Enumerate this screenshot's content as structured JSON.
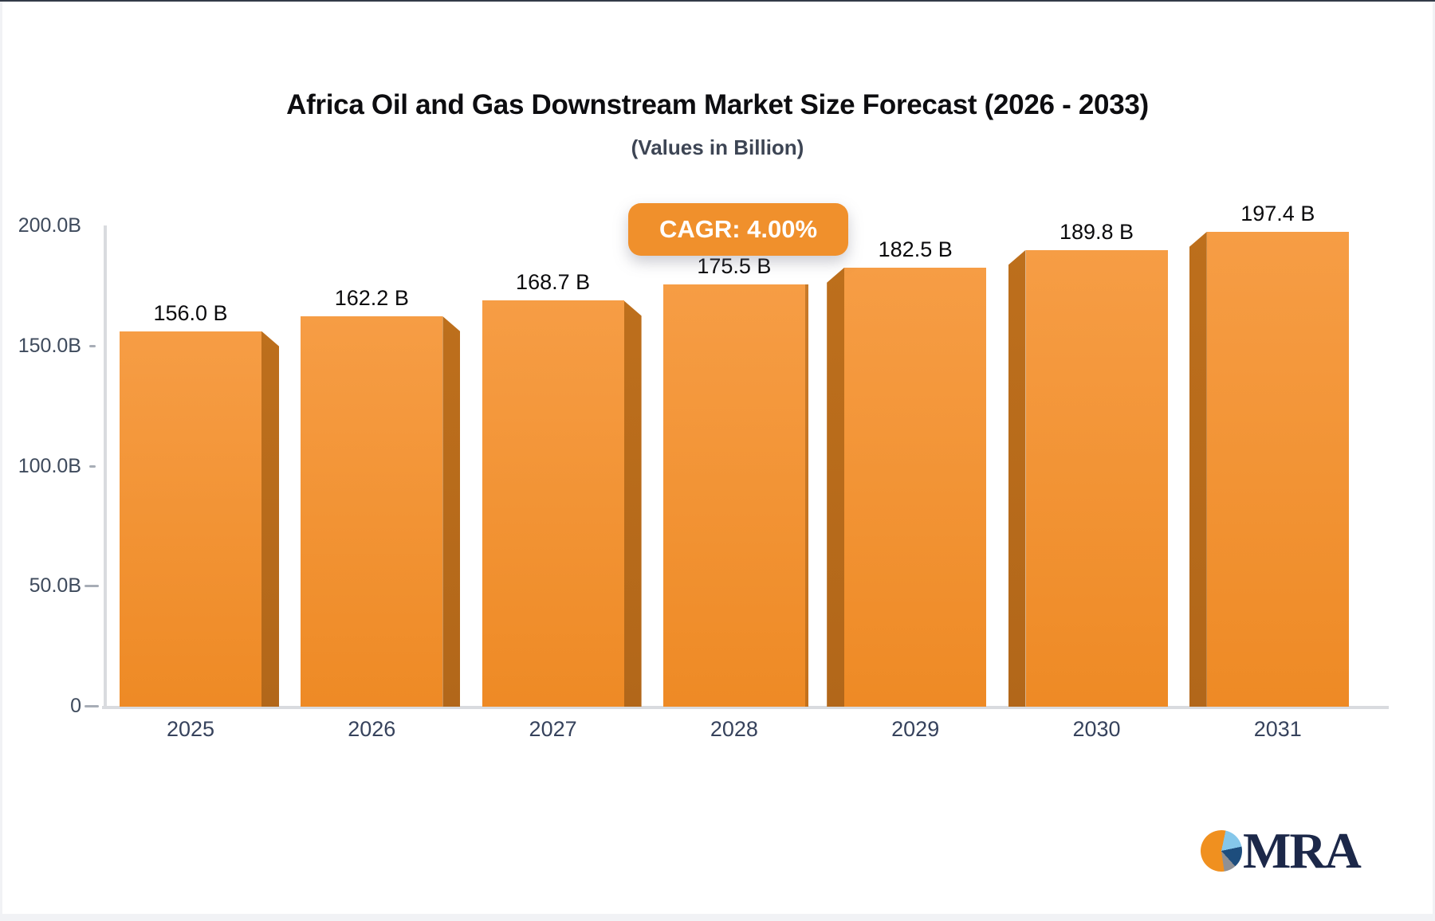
{
  "page": {
    "top_edge_color": "#333a48",
    "background": "#f1f2f5",
    "card_background": "#ffffff"
  },
  "chart_data": {
    "type": "bar",
    "title": "Africa Oil and Gas Downstream Market Size Forecast (2026 - 2033)",
    "subtitle": "(Values in Billion)",
    "annotation": {
      "label": "CAGR: 4.00%",
      "badge_color": "#f0902c",
      "text_color": "#ffffff"
    },
    "categories": [
      "2025",
      "2026",
      "2027",
      "2028",
      "2029",
      "2030",
      "2031"
    ],
    "values": [
      156.0,
      162.2,
      168.7,
      175.5,
      182.5,
      189.8,
      197.4
    ],
    "value_labels": [
      "156.0 B",
      "162.2 B",
      "168.7 B",
      "175.5 B",
      "182.5 B",
      "189.8 B",
      "197.4 B"
    ],
    "y_ticks": [
      {
        "label": "200.0B",
        "value": 200
      },
      {
        "label": "150.0B",
        "value": 150
      },
      {
        "label": "100.0B",
        "value": 100
      },
      {
        "label": "50.0B",
        "value": 50
      },
      {
        "label": "0",
        "value": 0
      }
    ],
    "ylim": [
      0,
      200
    ],
    "grid": false,
    "legend": false,
    "colors": {
      "bar_front_top": "#f69d45",
      "bar_front_bottom": "#ee8a25",
      "bar_side": "#bd6f1c",
      "axis": "#d9dbdf",
      "value_label": "#0b0b0d",
      "x_tick": "#36425c",
      "y_tick": "#3e4a5c"
    }
  },
  "branding": {
    "logo_text": "MRA",
    "logo_text_color": "#1c2849",
    "pie_colors": {
      "orange": "#f0901f",
      "light_blue": "#85c7ea",
      "navy": "#1d4d7d",
      "gray": "#8f9094"
    }
  }
}
